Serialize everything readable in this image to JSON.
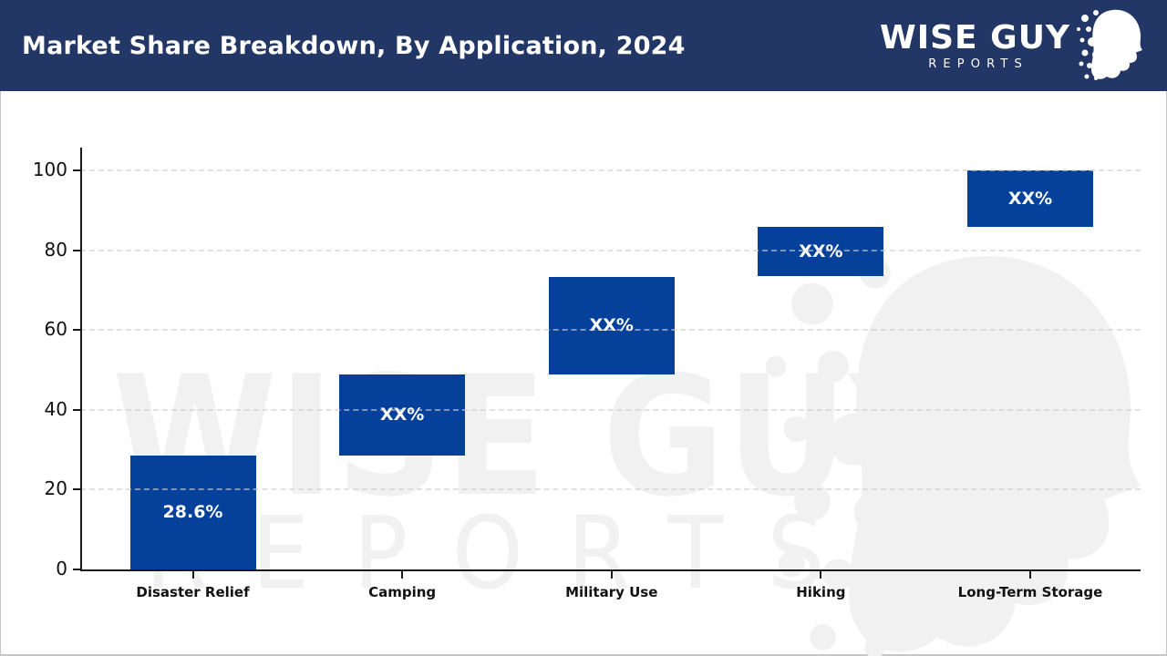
{
  "header": {
    "title": "Market Share Breakdown, By Application, 2024",
    "bg_color": "#223766",
    "logo": {
      "line1": "WISE GUY",
      "line2": "REPORTS"
    }
  },
  "watermark": {
    "line1": "WISE GUY",
    "line2": "REPORTS"
  },
  "chart_data": {
    "type": "bar",
    "subtype": "waterfall",
    "title": "Market Share Breakdown, By Application, 2024",
    "categories": [
      "Disaster Relief",
      "Camping",
      "Military Use",
      "Hiking",
      "Long-Term Storage"
    ],
    "segments": [
      {
        "category": "Disaster Relief",
        "start": 0,
        "end": 28.6,
        "label": "28.6%"
      },
      {
        "category": "Camping",
        "start": 28.6,
        "end": 48.9,
        "label": "XX%"
      },
      {
        "category": "Military Use",
        "start": 48.9,
        "end": 73.4,
        "label": "XX%"
      },
      {
        "category": "Hiking",
        "start": 73.4,
        "end": 85.8,
        "label": "XX%"
      },
      {
        "category": "Long-Term Storage",
        "start": 85.8,
        "end": 100,
        "label": "XX%"
      }
    ],
    "y_ticks": [
      0,
      20,
      40,
      60,
      80,
      100
    ],
    "ylim": [
      0,
      106
    ],
    "grid": "dashed horizontal",
    "legend": "none",
    "bar_color": "#05419B",
    "label_color": "#ffffff",
    "axis_color": "#1a1a1a",
    "grid_color": "#cdcdcd"
  }
}
